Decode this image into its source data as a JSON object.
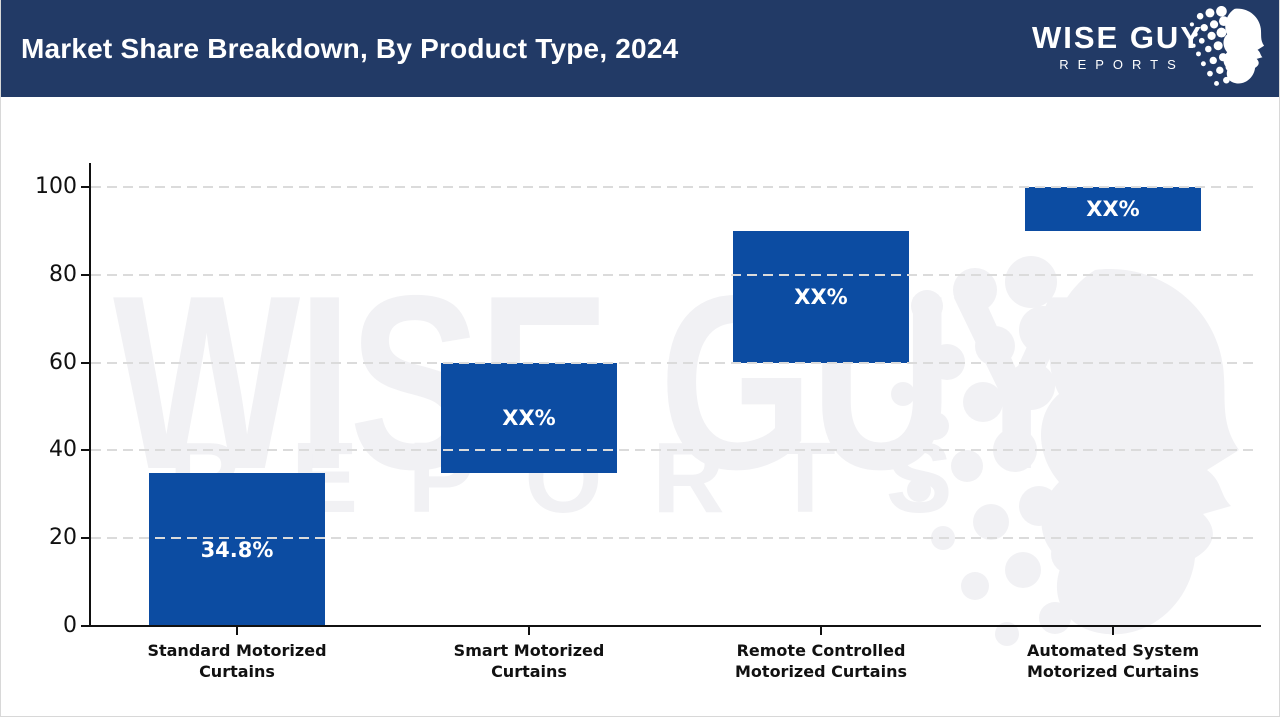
{
  "header": {
    "title": "Market Share Breakdown, By Product Type, 2024",
    "logo": {
      "name": "WISE GUY",
      "sub": "REPORTS"
    }
  },
  "watermark": {
    "line1": "WISE GUY",
    "line2": "REPORTS"
  },
  "colors": {
    "header_bg": "#223A66",
    "bar": "#0C4CA2",
    "grid": "#DBDBDB",
    "axis": "#111111",
    "watermark": "#F1F1F4",
    "bar_label": "#FFFFFF"
  },
  "chart_data": {
    "type": "bar",
    "subtype": "stacked-waterfall",
    "title": "Market Share Breakdown, By Product Type, 2024",
    "categories": [
      [
        "Standard Motorized",
        "Curtains"
      ],
      [
        "Smart Motorized",
        "Curtains"
      ],
      [
        "Remote Controlled",
        "Motorized Curtains"
      ],
      [
        "Automated System",
        "Motorized Curtains"
      ]
    ],
    "segments": [
      {
        "from": 0,
        "to": 34.8,
        "label": "34.8%"
      },
      {
        "from": 34.8,
        "to": 60,
        "label": "XX%"
      },
      {
        "from": 60,
        "to": 90,
        "label": "XX%"
      },
      {
        "from": 90,
        "to": 100,
        "label": "XX%"
      }
    ],
    "ylim": [
      0,
      100
    ],
    "yticks": [
      0,
      20,
      40,
      60,
      80,
      100
    ],
    "grid": {
      "axis": "y",
      "style": "dashed"
    },
    "legend": "none"
  }
}
